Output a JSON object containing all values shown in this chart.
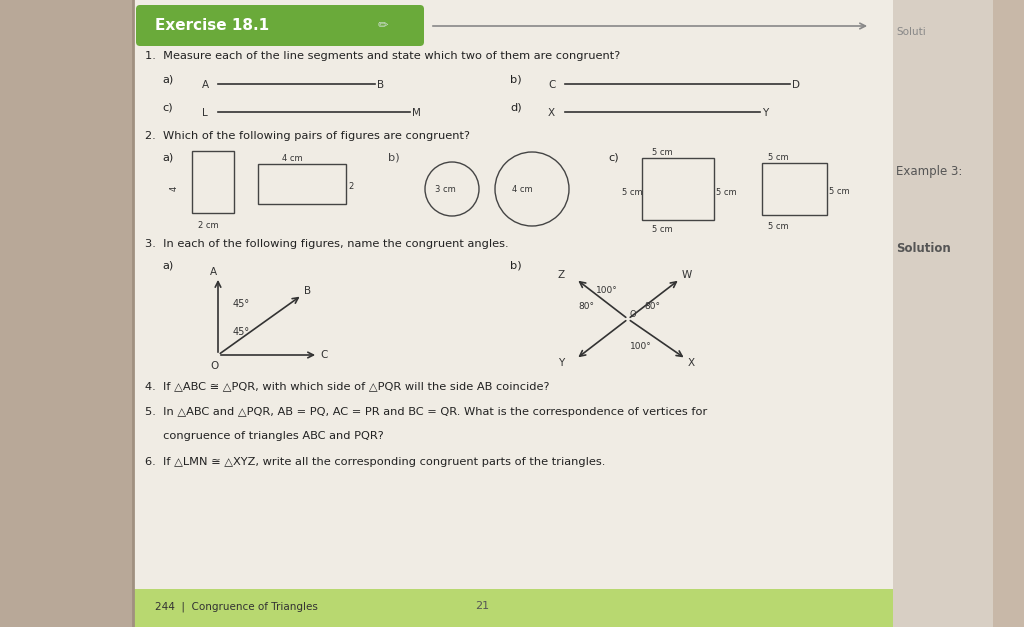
{
  "bg_color": "#c8b8a8",
  "page_color": "#f0ece4",
  "title": "Exercise 18.1",
  "title_bg": "#6aaa3a",
  "q1_text": "1.  Measure each of the line segments and state which two of them are congruent?",
  "q2_text": "2.  Which of the following pairs of figures are congruent?",
  "q3_text": "3.  In each of the following figures, name the congruent angles.",
  "q4_text": "4.  If △ABC ≅ △PQR, with which side of △PQR will the side AB coincide?",
  "q5_text": "5.  In △ABC and △PQR, AB = PQ, AC = PR and BC = QR. What is the correspondence of vertices for",
  "q5b_text": "     congruence of triangles ABC and PQR?",
  "q6_text": "6.  If △LMN ≅ △XYZ, write all the corresponding congruent parts of the triangles.",
  "footer": "244  |  Congruence of Triangles",
  "solution_text": "Soluti",
  "example_text": "Example 3:"
}
